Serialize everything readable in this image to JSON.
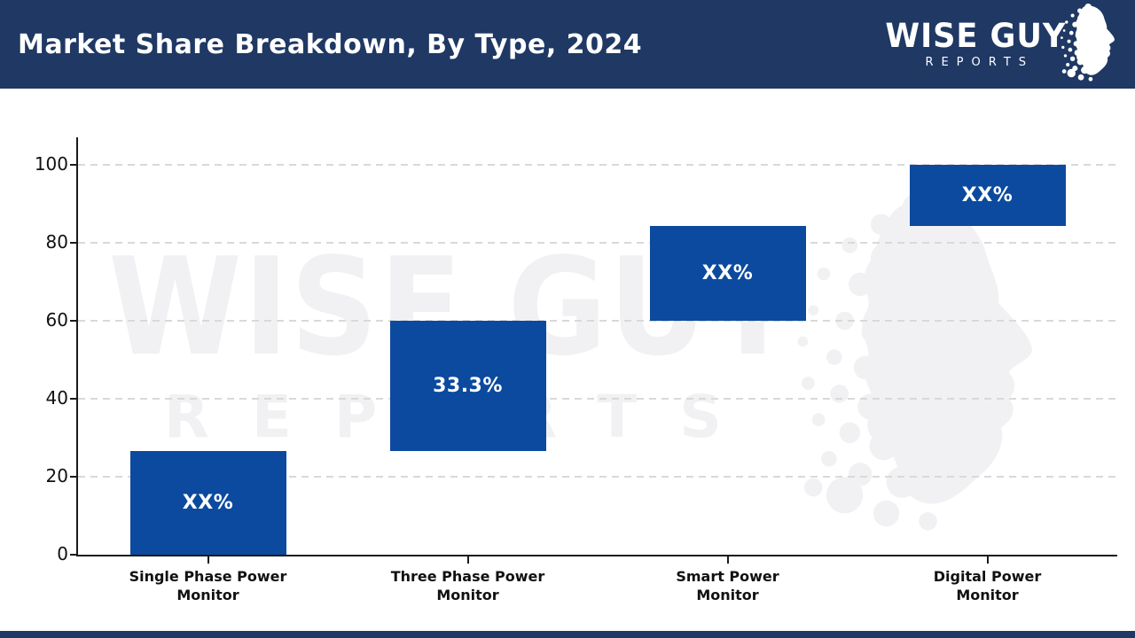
{
  "header": {
    "title": "Market Share Breakdown, By Type, 2024",
    "bg_color": "#1f3864",
    "logo": {
      "line1": "WISE GUY",
      "line2": "REPORTS"
    }
  },
  "watermark": {
    "line1": "WISE GUY",
    "line2": "REPORTS",
    "color": "#f1f1f3"
  },
  "chart_data": {
    "type": "bar",
    "subtype": "waterfall",
    "title": "Market Share Breakdown, By Type, 2024",
    "categories": [
      "Single Phase Power Monitor",
      "Three Phase Power Monitor",
      "Smart Power Monitor",
      "Digital Power Monitor"
    ],
    "tick_labels": [
      "Single Phase Power\nMonitor",
      "Three Phase Power\nMonitor",
      "Smart Power\nMonitor",
      "Digital Power\nMonitor"
    ],
    "segments": [
      {
        "category": "Single Phase Power Monitor",
        "start": 0,
        "end": 26.7,
        "value": 26.7,
        "label": "XX%"
      },
      {
        "category": "Three Phase Power Monitor",
        "start": 26.7,
        "end": 60,
        "value": 33.3,
        "label": "33.3%"
      },
      {
        "category": "Smart Power Monitor",
        "start": 60,
        "end": 84.3,
        "value": 24.3,
        "label": "XX%"
      },
      {
        "category": "Digital Power Monitor",
        "start": 84.3,
        "end": 100,
        "value": 15.7,
        "label": "XX%"
      }
    ],
    "xlabel": "",
    "ylabel": "",
    "ylim": [
      0,
      105
    ],
    "yticks": [
      0,
      20,
      40,
      60,
      80,
      100
    ],
    "grid": "horizontal-dashed",
    "legend": "none",
    "bar_color": "#0b4a9e",
    "bar_label_color": "#ffffff",
    "axis_color": "#1a1a1a",
    "grid_color": "#d9d9d9"
  },
  "footer": {
    "bg_color": "#1f3864"
  }
}
